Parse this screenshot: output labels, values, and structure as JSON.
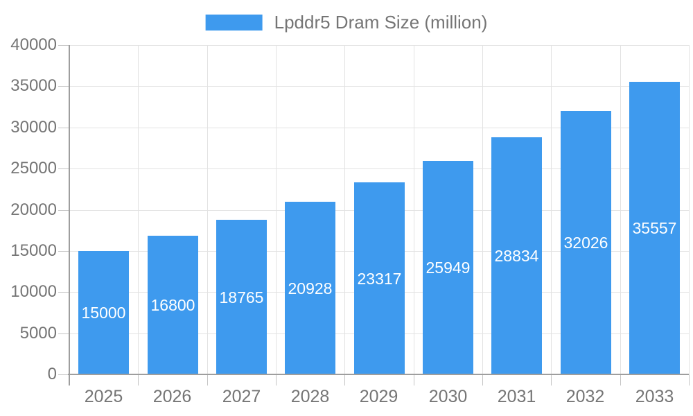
{
  "chart_data": {
    "type": "bar",
    "title": "Lpddr5 Dram Size (million)",
    "legend_label": "Lpddr5 Dram Size (million)",
    "legend_position": "top-center",
    "categories": [
      "2025",
      "2026",
      "2027",
      "2028",
      "2029",
      "2030",
      "2031",
      "2032",
      "2033"
    ],
    "values": [
      15000,
      16800,
      18765,
      20928,
      23317,
      25949,
      28834,
      32026,
      35557
    ],
    "bar_value_labels": [
      "15000",
      "16800",
      "18765",
      "20928",
      "23317",
      "25949",
      "28834",
      "32026",
      "35557"
    ],
    "xlabel": "",
    "ylabel": "",
    "ylim": [
      0,
      40000
    ],
    "ytick_step": 5000,
    "ytick_labels": [
      "0",
      "5000",
      "10000",
      "15000",
      "20000",
      "25000",
      "30000",
      "35000",
      "40000"
    ],
    "grid": true,
    "colors": {
      "bar": "#3E9AEE",
      "bar_label": "#FFFFFF",
      "grid": "#E2E2E2",
      "axis": "#9E9E9E",
      "tick": "#C4C4C4",
      "text": "#757575",
      "background": "#FFFFFF"
    }
  }
}
